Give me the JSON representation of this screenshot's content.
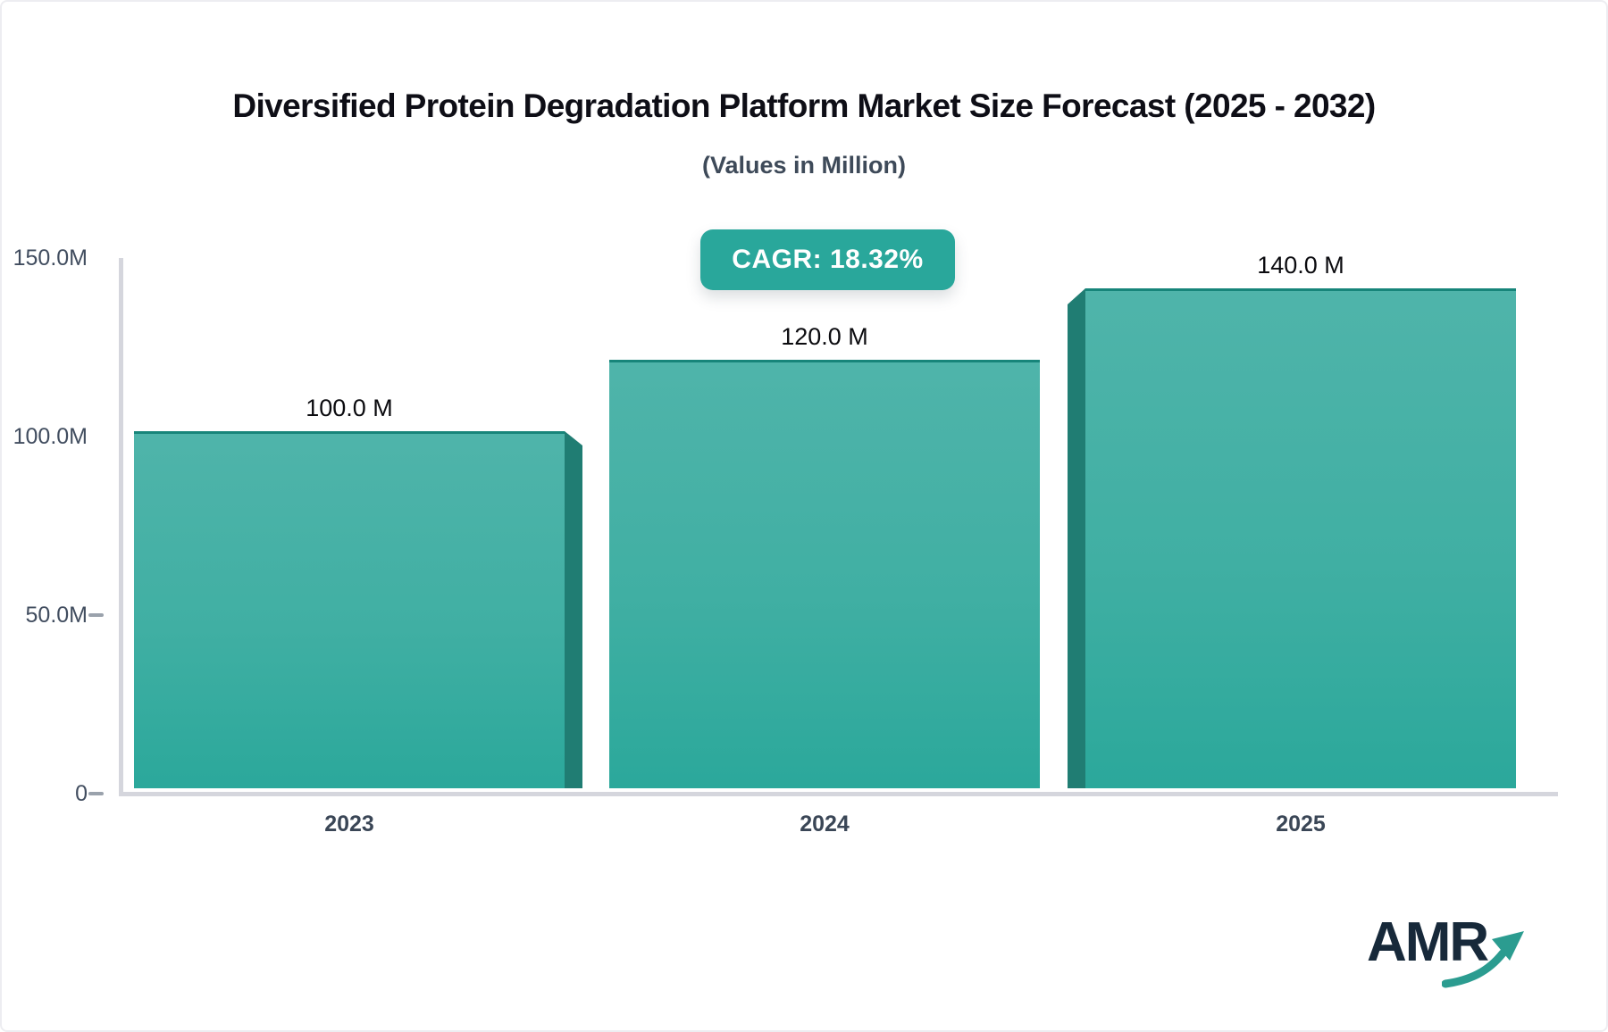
{
  "header": {
    "title": "Diversified Protein Degradation Platform Market Size Forecast (2025 - 2032)",
    "subtitle": "(Values in Million)"
  },
  "cagr_badge": {
    "label": "CAGR: 18.32%"
  },
  "chart_data": {
    "type": "bar",
    "title": "Diversified Protein Degradation Platform Market Size Forecast (2025 - 2032)",
    "subtitle": "(Values in Million)",
    "categories": [
      "2023",
      "2024",
      "2025"
    ],
    "values": [
      100.0,
      120.0,
      140.0
    ],
    "value_labels": [
      "100.0 M",
      "120.0 M",
      "140.0 M"
    ],
    "unit": "Million",
    "cagr_percent": 18.32,
    "xlabel": "",
    "ylabel": "",
    "ylim": [
      0,
      150
    ],
    "ytick_labels": [
      "150.0M",
      "100.0M",
      "50.0M",
      "0"
    ],
    "grid": false,
    "legend": false,
    "colors": {
      "bar_face_top": "#4FB4AA",
      "bar_face_bottom": "#2BA89B",
      "bar_top_edge": "#17857A",
      "bar_side_3d": "#207D73",
      "axis_line": "#D5D6DD",
      "badge_background": "#29A79B",
      "badge_text": "#FFFFFF"
    }
  },
  "logo": {
    "text": "AMR",
    "text_color": "#17293A",
    "arrow_color": "#2B9C90"
  }
}
